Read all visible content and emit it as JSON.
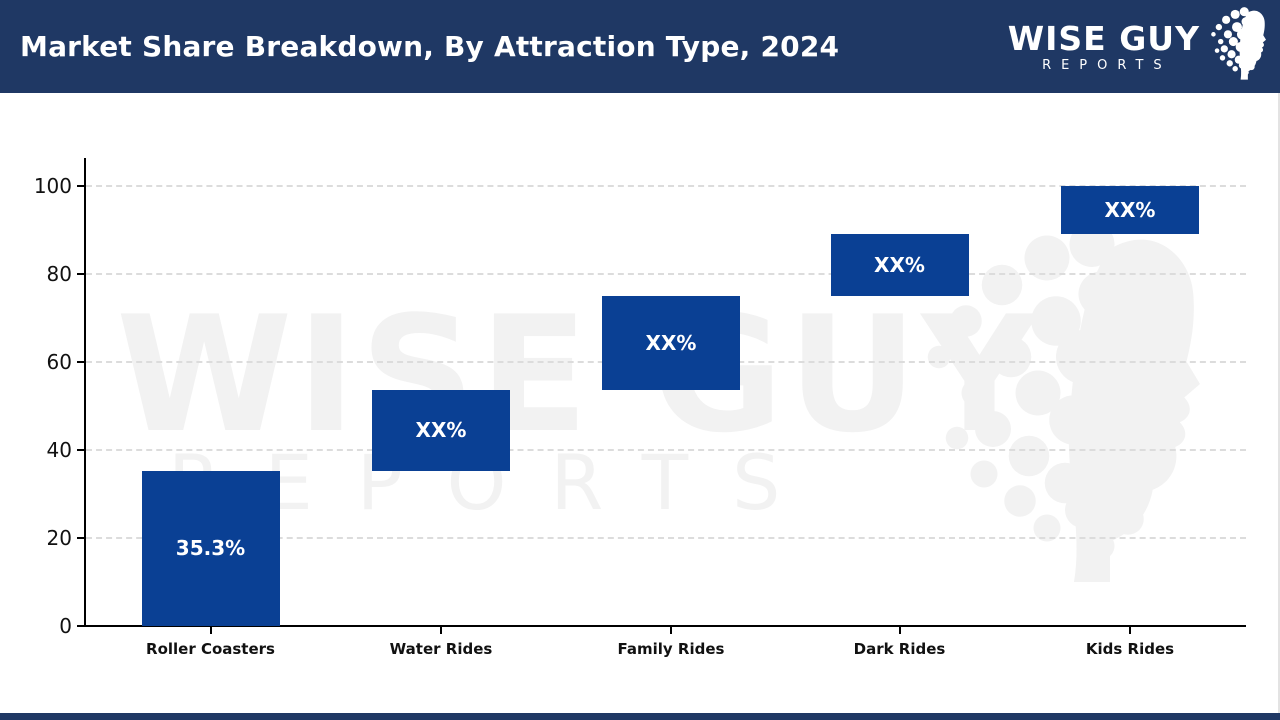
{
  "header": {
    "title": "Market Share Breakdown, By Attraction Type, 2024",
    "logo": {
      "line1": "WISE GUY",
      "line2": "REPORTS"
    }
  },
  "watermark": {
    "line1": "WISE GUY",
    "line2": "REPORTS"
  },
  "chart_data": {
    "type": "bar",
    "subtype": "waterfall",
    "title": "Market Share Breakdown, By Attraction Type, 2024",
    "categories": [
      "Roller Coasters",
      "Water Rides",
      "Family Rides",
      "Dark Rides",
      "Kids Rides"
    ],
    "series": [
      {
        "name": "Market Share",
        "points": [
          {
            "category": "Roller Coasters",
            "start": 0,
            "end": 35.3,
            "label": "35.3%"
          },
          {
            "category": "Water Rides",
            "start": 35.3,
            "end": 53.5,
            "label": "XX%"
          },
          {
            "category": "Family Rides",
            "start": 53.5,
            "end": 74.9,
            "label": "XX%"
          },
          {
            "category": "Dark Rides",
            "start": 74.9,
            "end": 88.9,
            "label": "XX%"
          },
          {
            "category": "Kids Rides",
            "start": 88.9,
            "end": 100,
            "label": "XX%"
          }
        ]
      }
    ],
    "ylim": [
      0,
      100
    ],
    "yticks": [
      0,
      20,
      40,
      60,
      80,
      100
    ],
    "grid": "horizontal-dashed",
    "legend": "none",
    "xlabel": "",
    "ylabel": ""
  },
  "colors": {
    "header_bg": "#1f3864",
    "footer_bg": "#1f3864",
    "bar": "#0a4094",
    "bar_label": "#ffffff",
    "axis": "#000000",
    "grid": "#dcdcdc",
    "watermark": "#f2f2f2",
    "title_text": "#ffffff"
  }
}
